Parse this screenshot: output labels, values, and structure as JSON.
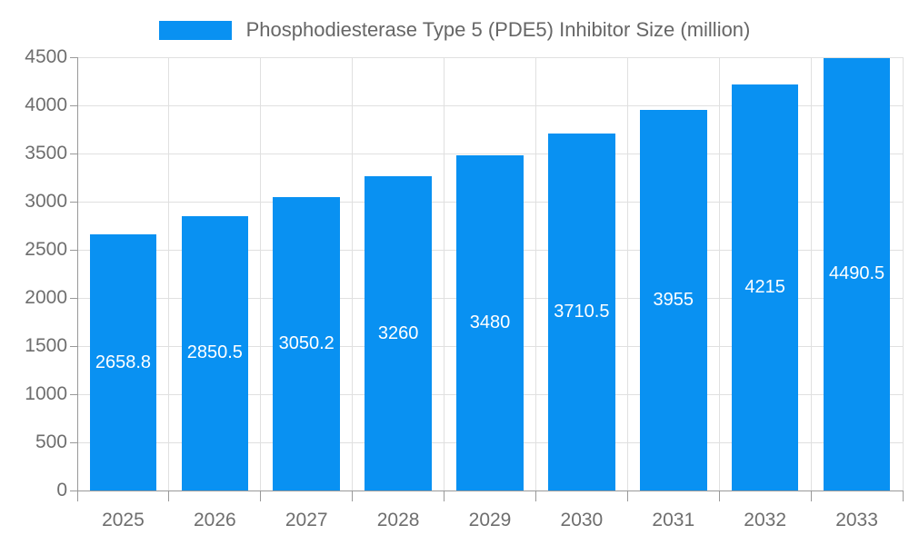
{
  "legend": {
    "label": "Phosphodiesterase Type 5 (PDE5) Inhibitor Size (million)"
  },
  "chart_data": {
    "type": "bar",
    "title": "",
    "series_name": "Phosphodiesterase Type 5 (PDE5) Inhibitor Size (million)",
    "categories": [
      "2025",
      "2026",
      "2027",
      "2028",
      "2029",
      "2030",
      "2031",
      "2032",
      "2033"
    ],
    "values": [
      2658.8,
      2850.5,
      3050.2,
      3260,
      3480,
      3710.5,
      3955,
      4215,
      4490.5
    ],
    "xlabel": "",
    "ylabel": "",
    "ylim": [
      0,
      4500
    ],
    "ytick_step": 500,
    "yticks": [
      0,
      500,
      1000,
      1500,
      2000,
      2500,
      3000,
      3500,
      4000,
      4500
    ],
    "grid": true,
    "legend_position": "top-center",
    "value_label_position": "inside-center"
  },
  "style": {
    "bar_color": "#0991f2",
    "grid_color": "#e0e0e0",
    "axis_line_color": "#999999",
    "axis_text_color": "#6e6e6e",
    "legend_text_color": "#666666",
    "value_label_color": "#ffffff",
    "background": "#ffffff"
  }
}
